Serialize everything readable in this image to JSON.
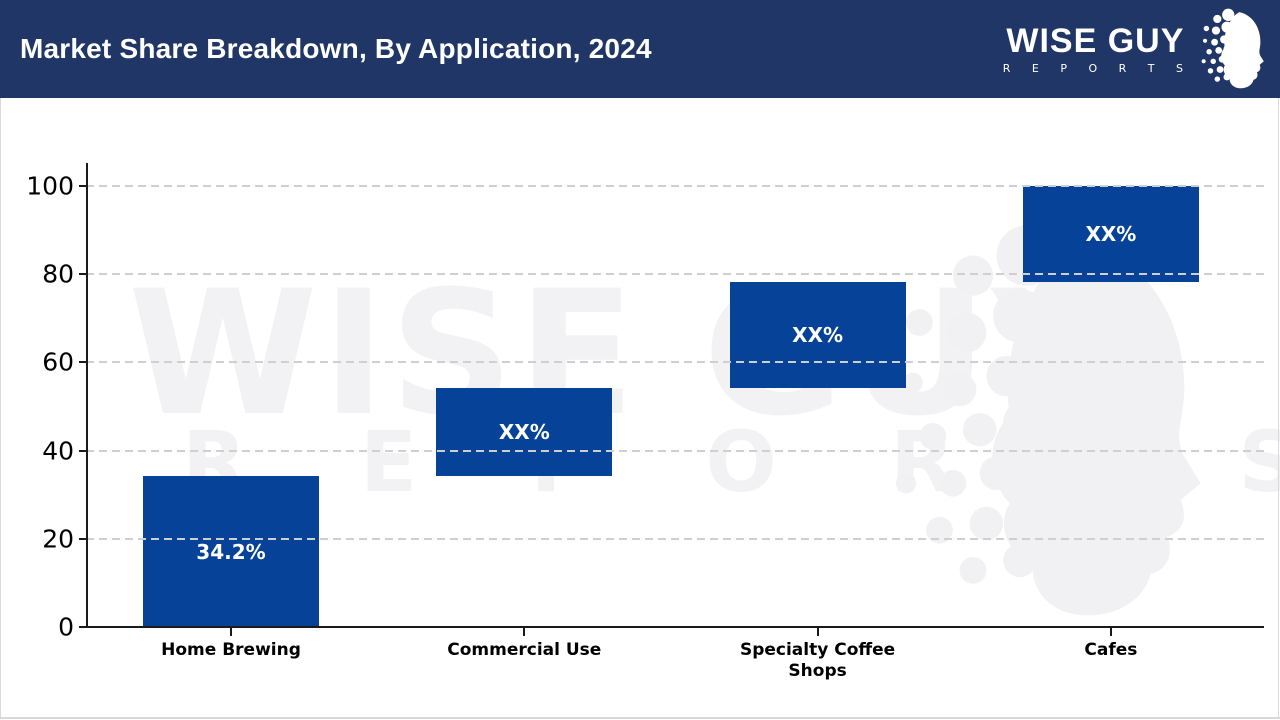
{
  "header": {
    "title": "Market Share Breakdown, By Application, 2024",
    "bg_color": "#1f3666",
    "logo": {
      "wordmark": "WISE GUY",
      "subtitle": "R E P O R T S",
      "head_icon": "dotted-head-profile"
    }
  },
  "watermark": {
    "wordmark": "WISE GUY",
    "subtitle": "R E P O R T S",
    "head_icon": "dotted-head-profile",
    "color": "#f2f2f5"
  },
  "chart_data": {
    "type": "bar",
    "subtype": "waterfall",
    "title": "Market Share Breakdown, By Application, 2024",
    "xlabel": "",
    "ylabel": "",
    "categories": [
      "Home Brewing",
      "Commercial Use",
      "Specialty Coffee Shops",
      "Cafes"
    ],
    "segments": [
      {
        "category": "Home Brewing",
        "start": 0,
        "end": 34.2,
        "label": "34.2%"
      },
      {
        "category": "Commercial Use",
        "start": 34.2,
        "end": 54.2,
        "label": "XX%"
      },
      {
        "category": "Specialty Coffee Shops",
        "start": 54.2,
        "end": 78.2,
        "label": "XX%"
      },
      {
        "category": "Cafes",
        "start": 78.2,
        "end": 100,
        "label": "XX%"
      }
    ],
    "yticks": [
      0,
      20,
      40,
      60,
      80,
      100
    ],
    "ylim": [
      0,
      100
    ],
    "bar_color": "#074299",
    "grid": "horizontal-dashed",
    "gridline_color": "#cfcfcf",
    "legend": "none"
  }
}
